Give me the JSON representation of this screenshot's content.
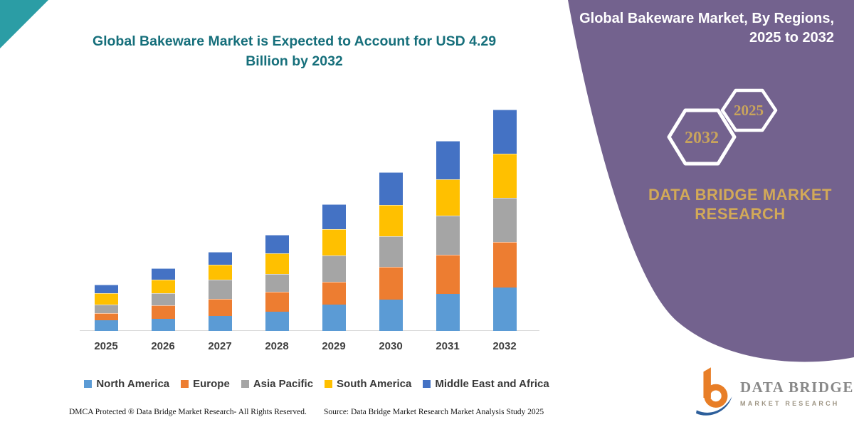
{
  "page": {
    "background": "#FFFFFF",
    "accent_teal": "#2B9DA5",
    "panel_purple": "#73628E",
    "gold": "#C9A45C"
  },
  "title": {
    "text": "Global Bakeware Market is Expected to Account for USD 4.29 Billion by 2032",
    "color": "#166F7B"
  },
  "side_panel": {
    "heading": "Global Bakeware Market, By Regions, 2025 to 2032",
    "hexagons": [
      {
        "label": "2032"
      },
      {
        "label": "2025"
      }
    ],
    "brand_text": "DATA BRIDGE MARKET RESEARCH"
  },
  "chart_data": {
    "type": "bar",
    "stacked": true,
    "title": "Global Bakeware Market is Expected to Account for USD 4.29 Billion by 2032",
    "xlabel": "",
    "ylabel": "",
    "grid": false,
    "legend_position": "bottom",
    "value_unit": "relative height px (chart shows no y-axis)",
    "categories": [
      "2025",
      "2026",
      "2027",
      "2028",
      "2029",
      "2030",
      "2031",
      "2032"
    ],
    "series": [
      {
        "name": "North America",
        "color": "#5B9BD5",
        "values": [
          15,
          17,
          21,
          27,
          37,
          44,
          52,
          61
        ]
      },
      {
        "name": "Europe",
        "color": "#ED7D31",
        "values": [
          10,
          19,
          24,
          28,
          32,
          46,
          55,
          64
        ]
      },
      {
        "name": "Asia Pacific",
        "color": "#A5A5A5",
        "values": [
          12,
          17,
          27,
          25,
          37,
          43,
          55,
          62
        ]
      },
      {
        "name": "South America",
        "color": "#FFC000",
        "values": [
          16,
          19,
          21,
          29,
          37,
          44,
          51,
          62
        ]
      },
      {
        "name": "Middle East and Africa",
        "color": "#4472C4",
        "values": [
          12,
          16,
          18,
          26,
          35,
          46,
          54,
          62
        ]
      }
    ]
  },
  "footer": {
    "left": "DMCA Protected ® Data Bridge Market Research-  All Rights Reserved.",
    "right": "Source: Data Bridge Market Research  Market Analysis Study 2025"
  },
  "logo": {
    "line1": "DATA BRIDGE",
    "line2": "MARKET RESEARCH"
  }
}
